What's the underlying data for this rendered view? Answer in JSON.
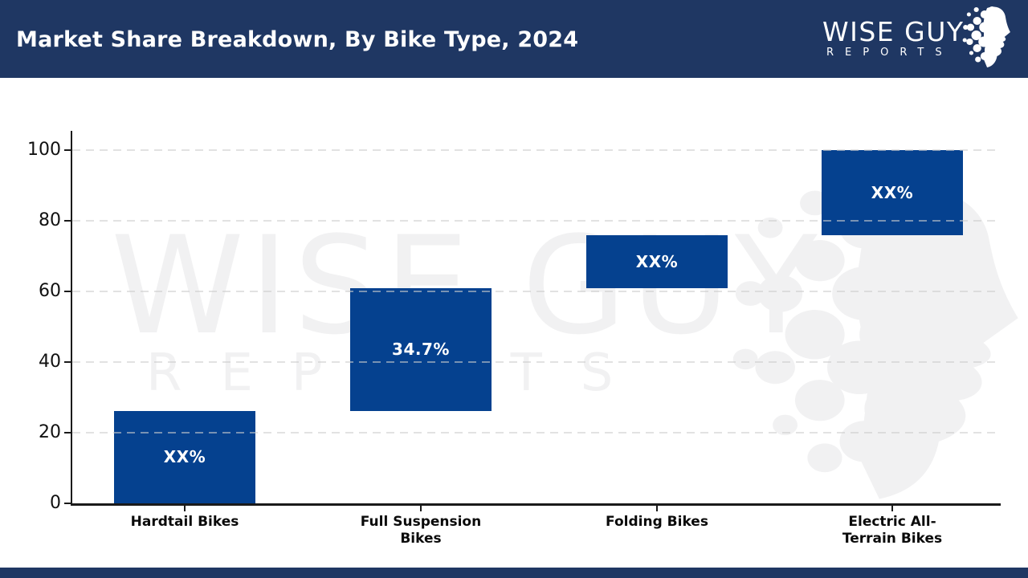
{
  "header": {
    "title": "Market Share Breakdown, By Bike Type, 2024",
    "logo": {
      "name": "WISE GUY",
      "sub": "REPORTS"
    }
  },
  "watermark": {
    "name": "WISE GUY",
    "sub": "REPORTS"
  },
  "footer": {},
  "chart_data": {
    "type": "bar",
    "subtype": "waterfall-breakdown",
    "title": "Market Share Breakdown, By Bike Type, 2024",
    "categories": [
      "Hardtail Bikes",
      "Full Suspension\nBikes",
      "Folding Bikes",
      "Electric All-\nTerrain Bikes"
    ],
    "segments": [
      {
        "category": "Hardtail Bikes",
        "label": "XX%",
        "start": 0,
        "end": 26.2
      },
      {
        "category": "Full Suspension Bikes",
        "label": "34.7%",
        "start": 26.2,
        "end": 60.9
      },
      {
        "category": "Folding Bikes",
        "label": "XX%",
        "start": 60.9,
        "end": 76.0
      },
      {
        "category": "Electric All-Terrain Bikes",
        "label": "XX%",
        "start": 76.0,
        "end": 100
      }
    ],
    "yticks": [
      0,
      20,
      40,
      60,
      80,
      100
    ],
    "ylim": [
      0,
      105.5
    ],
    "xlabel": "",
    "ylabel": "",
    "grid": "horizontal-dashed, drawn over bars",
    "legend": "none",
    "bar_color": "#05418f",
    "axis_color": "#1a1a1a",
    "header_bg": "#1f3763",
    "footer_bg": "#1f3763",
    "watermark_color": "#f1f1f2"
  }
}
